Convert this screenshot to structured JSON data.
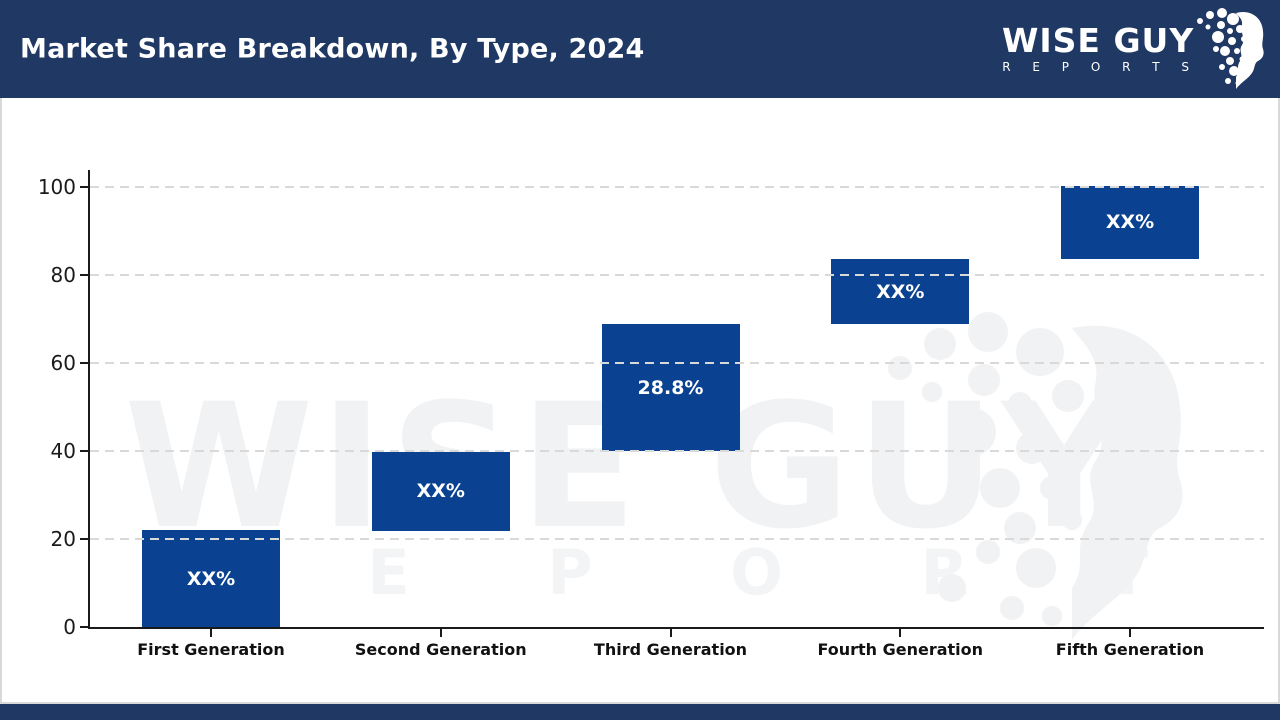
{
  "header": {
    "title": "Market Share Breakdown, By Type, 2024",
    "logo": {
      "line1": "WISE GUY",
      "line2": "R E P O R T S"
    }
  },
  "colors": {
    "header_bg": "#1f3864",
    "footer_bg": "#1f3864",
    "bar": "#0a4191",
    "axis": "#1a1a1a",
    "gridline": "#d9d9d9",
    "bar_label": "#ffffff",
    "watermark": "#f1f2f4"
  },
  "chart_data": {
    "type": "bar",
    "subtype": "waterfall-floating-bars",
    "title": "Market Share Breakdown, By Type, 2024",
    "xlabel": "",
    "ylabel": "",
    "ylim": [
      0,
      104
    ],
    "yticks": [
      0,
      20,
      40,
      60,
      80,
      100
    ],
    "grid": "horizontal-dashed, drawn above bars",
    "legend": "none",
    "categories": [
      "First Generation",
      "Second Generation",
      "Third Generation",
      "Fourth Generation",
      "Fifth Generation"
    ],
    "bars": [
      {
        "category": "First Generation",
        "label": "XX%",
        "base": 0,
        "top": 22.0
      },
      {
        "category": "Second Generation",
        "label": "XX%",
        "base": 21.8,
        "top": 39.8
      },
      {
        "category": "Third Generation",
        "label": "28.8%",
        "base": 40.0,
        "top": 68.8
      },
      {
        "category": "Fourth Generation",
        "label": "XX%",
        "base": 68.8,
        "top": 83.6
      },
      {
        "category": "Fifth Generation",
        "label": "XX%",
        "base": 83.7,
        "top": 100.2
      }
    ],
    "watermark": {
      "line1": "WISE GUY",
      "line2": "R E P O R T S"
    }
  }
}
